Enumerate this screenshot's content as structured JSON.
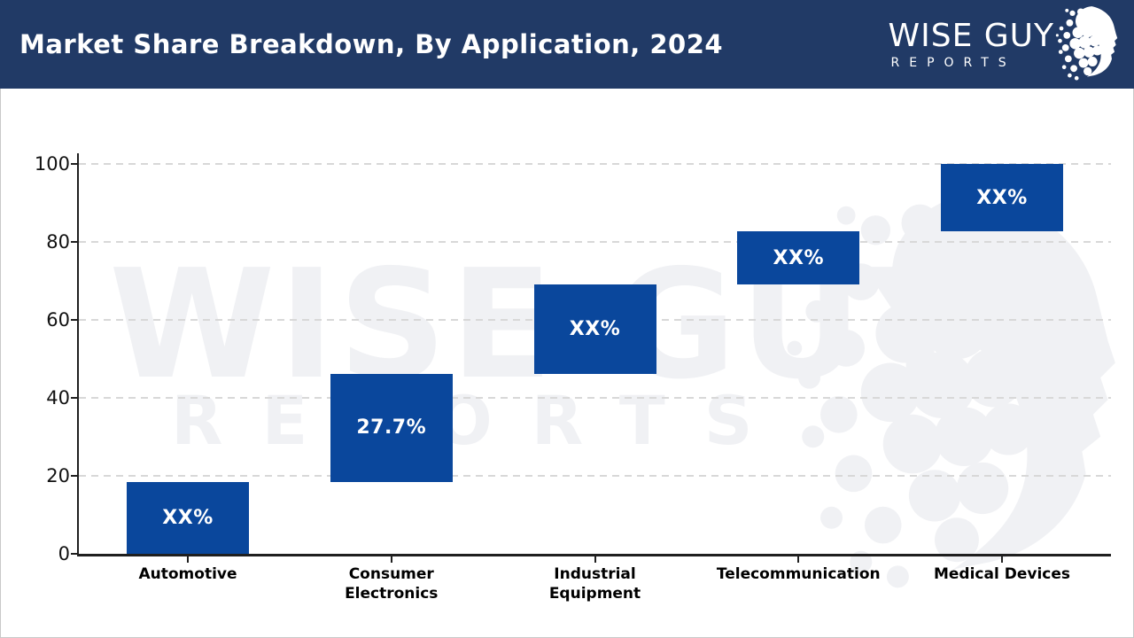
{
  "header": {
    "title": "Market Share Breakdown, By Application, 2024",
    "bg_color": "#213a66",
    "logo": {
      "line1": "WISE GUY",
      "line2": "REPORTS"
    }
  },
  "watermark": {
    "line1": "WISE GUY",
    "line2": "REPORTS"
  },
  "chart_data": {
    "type": "bar",
    "subtype": "waterfall",
    "title": "Market Share Breakdown, By Application, 2024",
    "unit": "%",
    "categories": [
      "Automotive",
      "Consumer Electronics",
      "Industrial Equipment",
      "Telecommunication",
      "Medical Devices"
    ],
    "bars": [
      {
        "category": "Automotive",
        "label_lines": [
          "Automotive"
        ],
        "start": 0,
        "end": 18.5,
        "value": 18.5,
        "label": "XX%"
      },
      {
        "category": "Consumer Electronics",
        "label_lines": [
          "Consumer",
          "Electronics"
        ],
        "start": 18.5,
        "end": 46.2,
        "value": 27.7,
        "label": "27.7%"
      },
      {
        "category": "Industrial Equipment",
        "label_lines": [
          "Industrial",
          "Equipment"
        ],
        "start": 46.2,
        "end": 69.1,
        "value": 22.9,
        "label": "XX%"
      },
      {
        "category": "Telecommunication",
        "label_lines": [
          "Telecommunication"
        ],
        "start": 69.1,
        "end": 82.7,
        "value": 13.6,
        "label": "XX%"
      },
      {
        "category": "Medical Devices",
        "label_lines": [
          "Medical Devices"
        ],
        "start": 82.7,
        "end": 100,
        "value": 17.3,
        "label": "XX%"
      }
    ],
    "y_ticks": [
      0,
      20,
      40,
      60,
      80,
      100
    ],
    "ylim": [
      0,
      103
    ],
    "grid": "horizontal dashed",
    "legend": "none",
    "bar_color": "#0a479c",
    "bar_label_color": "#ffffff",
    "grid_color": "#d8d8d8",
    "axis_color": "#1f1f1f",
    "watermark_color": "#f0f1f4"
  }
}
